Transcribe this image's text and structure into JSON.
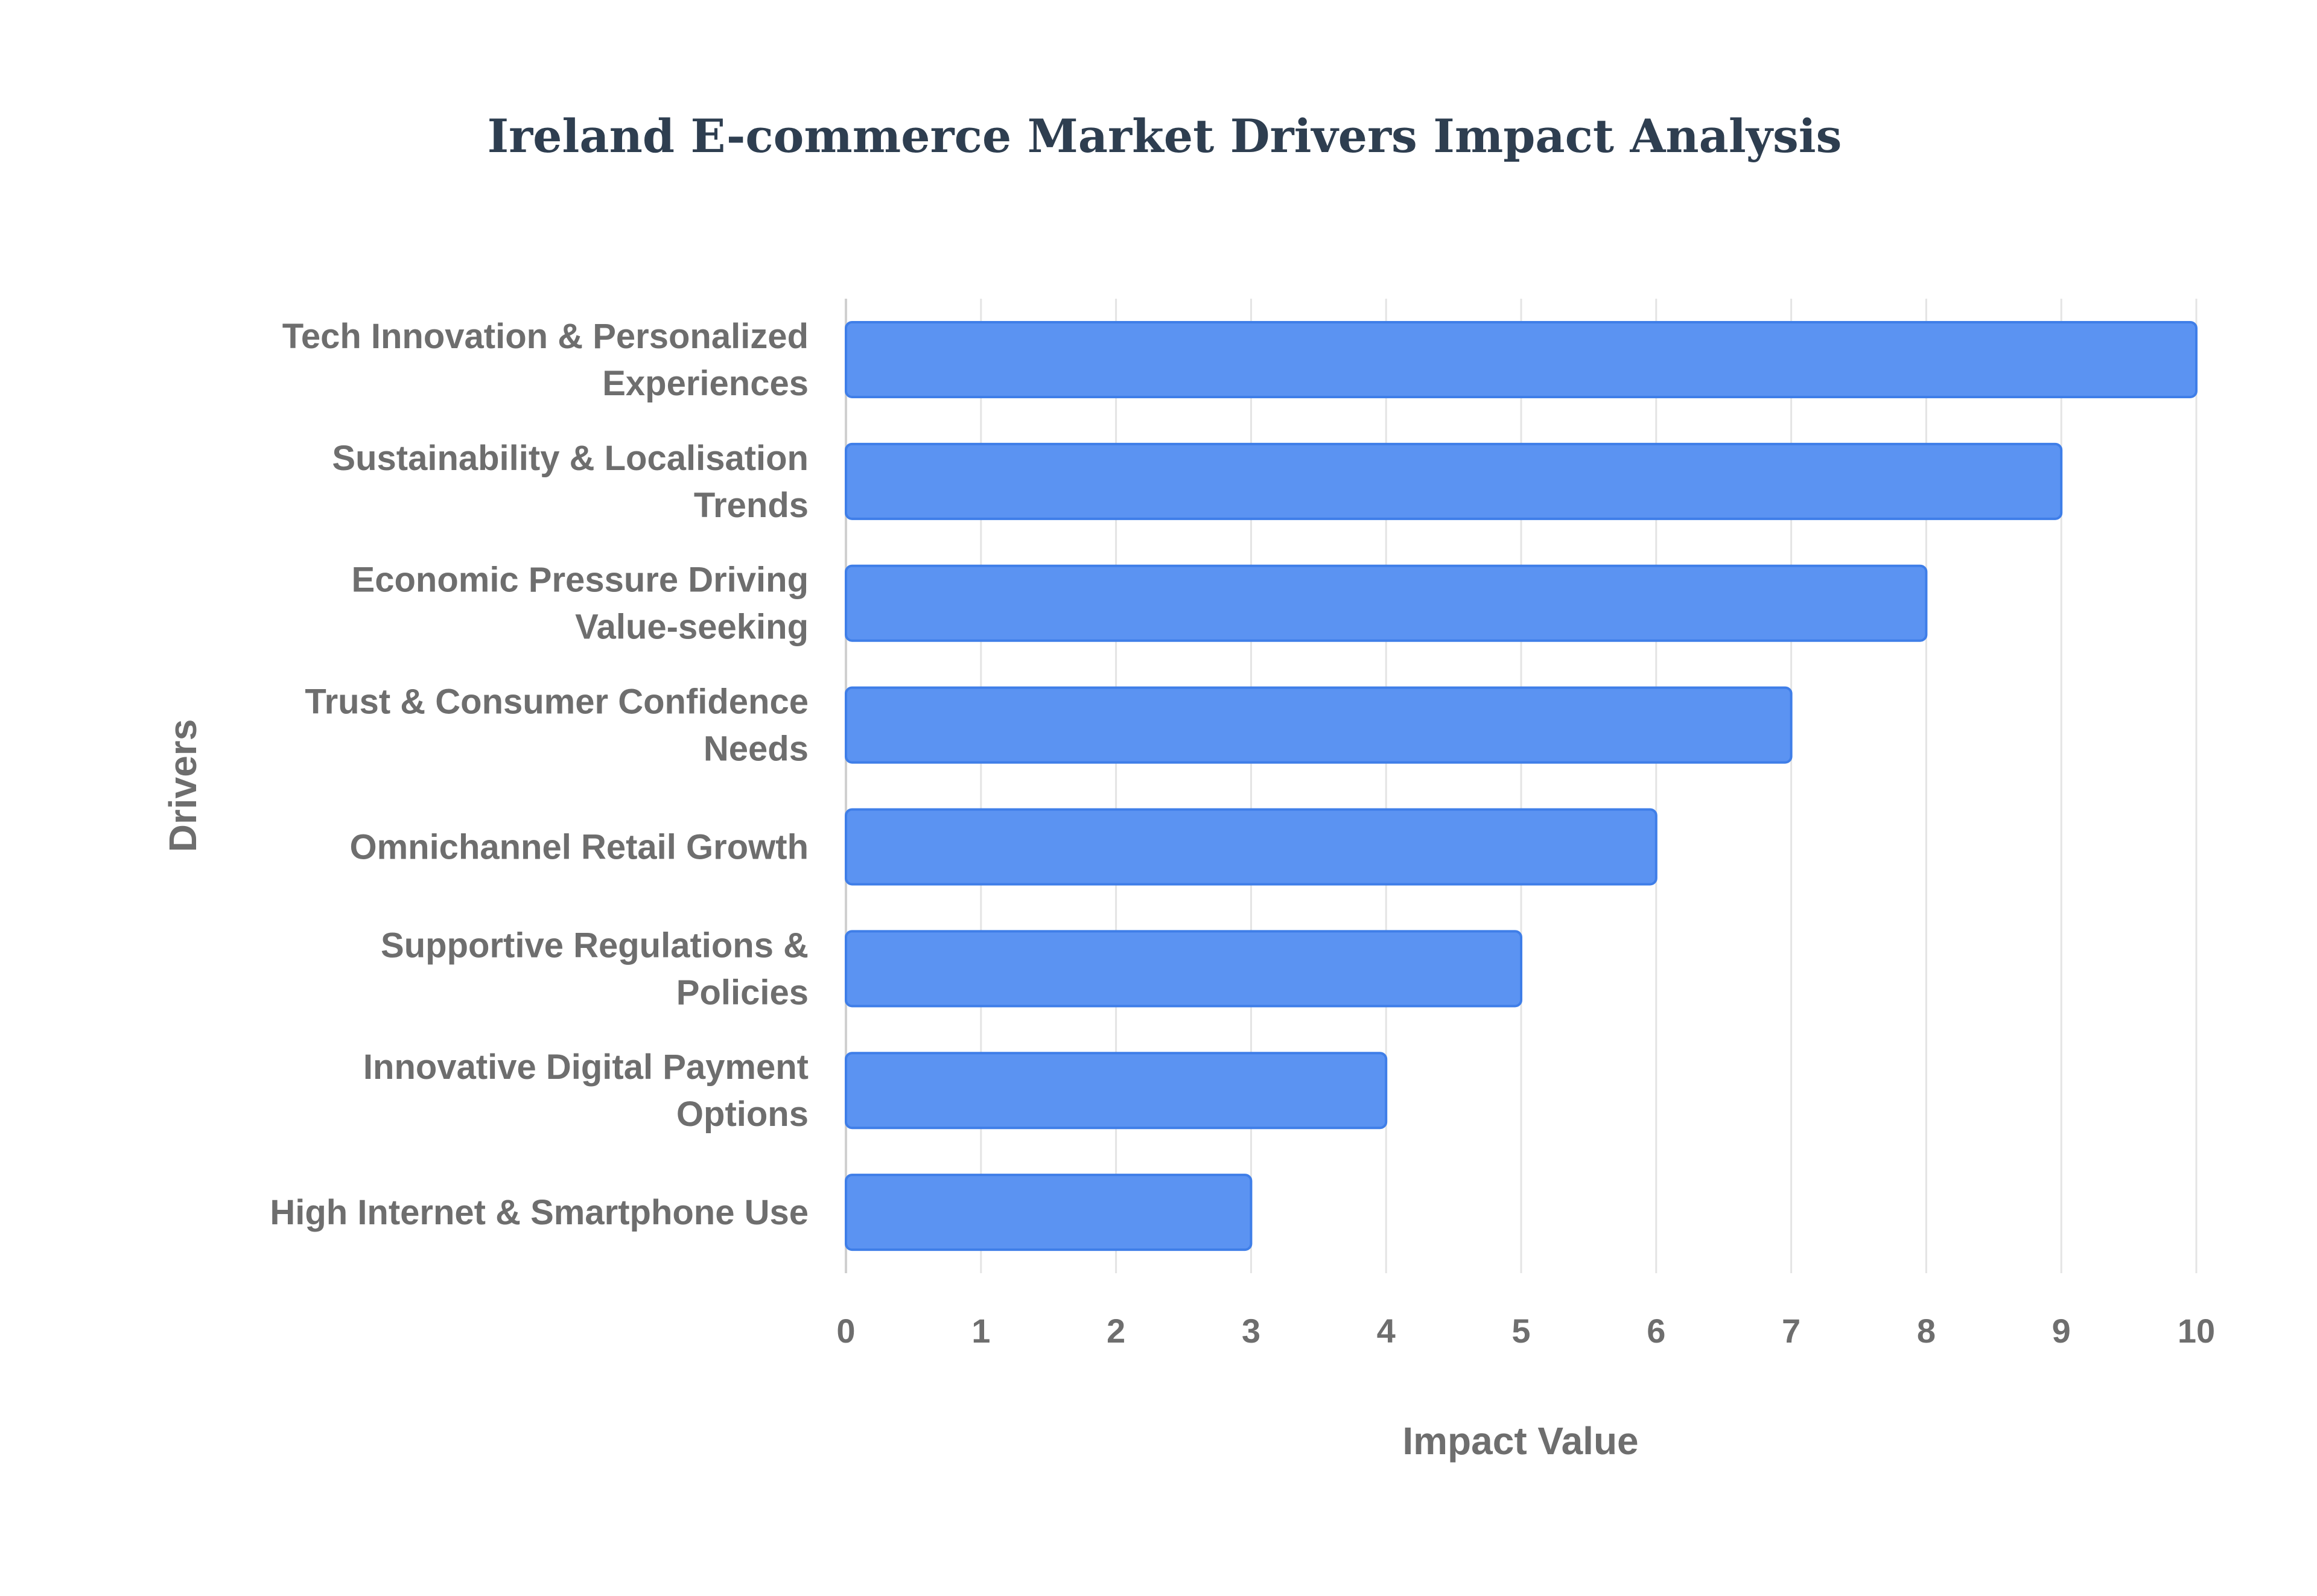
{
  "colors": {
    "bar_fill": "#5b93f2",
    "bar_stroke": "#3f7ee8",
    "title": "#2e3e50",
    "text": "#6e6e6e",
    "grid": "#e4e4e4",
    "axis": "#d0d0d0"
  },
  "chart_data": {
    "type": "bar",
    "orientation": "horizontal",
    "title": "Ireland E-commerce Market Drivers Impact Analysis",
    "xlabel": "Impact Value",
    "ylabel": "Drivers",
    "xlim": [
      0,
      10
    ],
    "xticks": [
      "0",
      "1",
      "2",
      "3",
      "4",
      "5",
      "6",
      "7",
      "8",
      "9",
      "10"
    ],
    "grid": true,
    "categories": [
      [
        "Tech Innovation & Personalized",
        "Experiences"
      ],
      [
        "Sustainability & Localisation",
        "Trends"
      ],
      [
        "Economic Pressure Driving",
        "Value-seeking"
      ],
      [
        "Trust & Consumer Confidence",
        "Needs"
      ],
      [
        "Omnichannel Retail Growth"
      ],
      [
        "Supportive Regulations &",
        "Policies"
      ],
      [
        "Innovative Digital Payment",
        "Options"
      ],
      [
        "High Internet & Smartphone Use"
      ]
    ],
    "values": [
      10,
      9,
      8,
      7,
      6,
      5,
      4,
      3
    ]
  }
}
